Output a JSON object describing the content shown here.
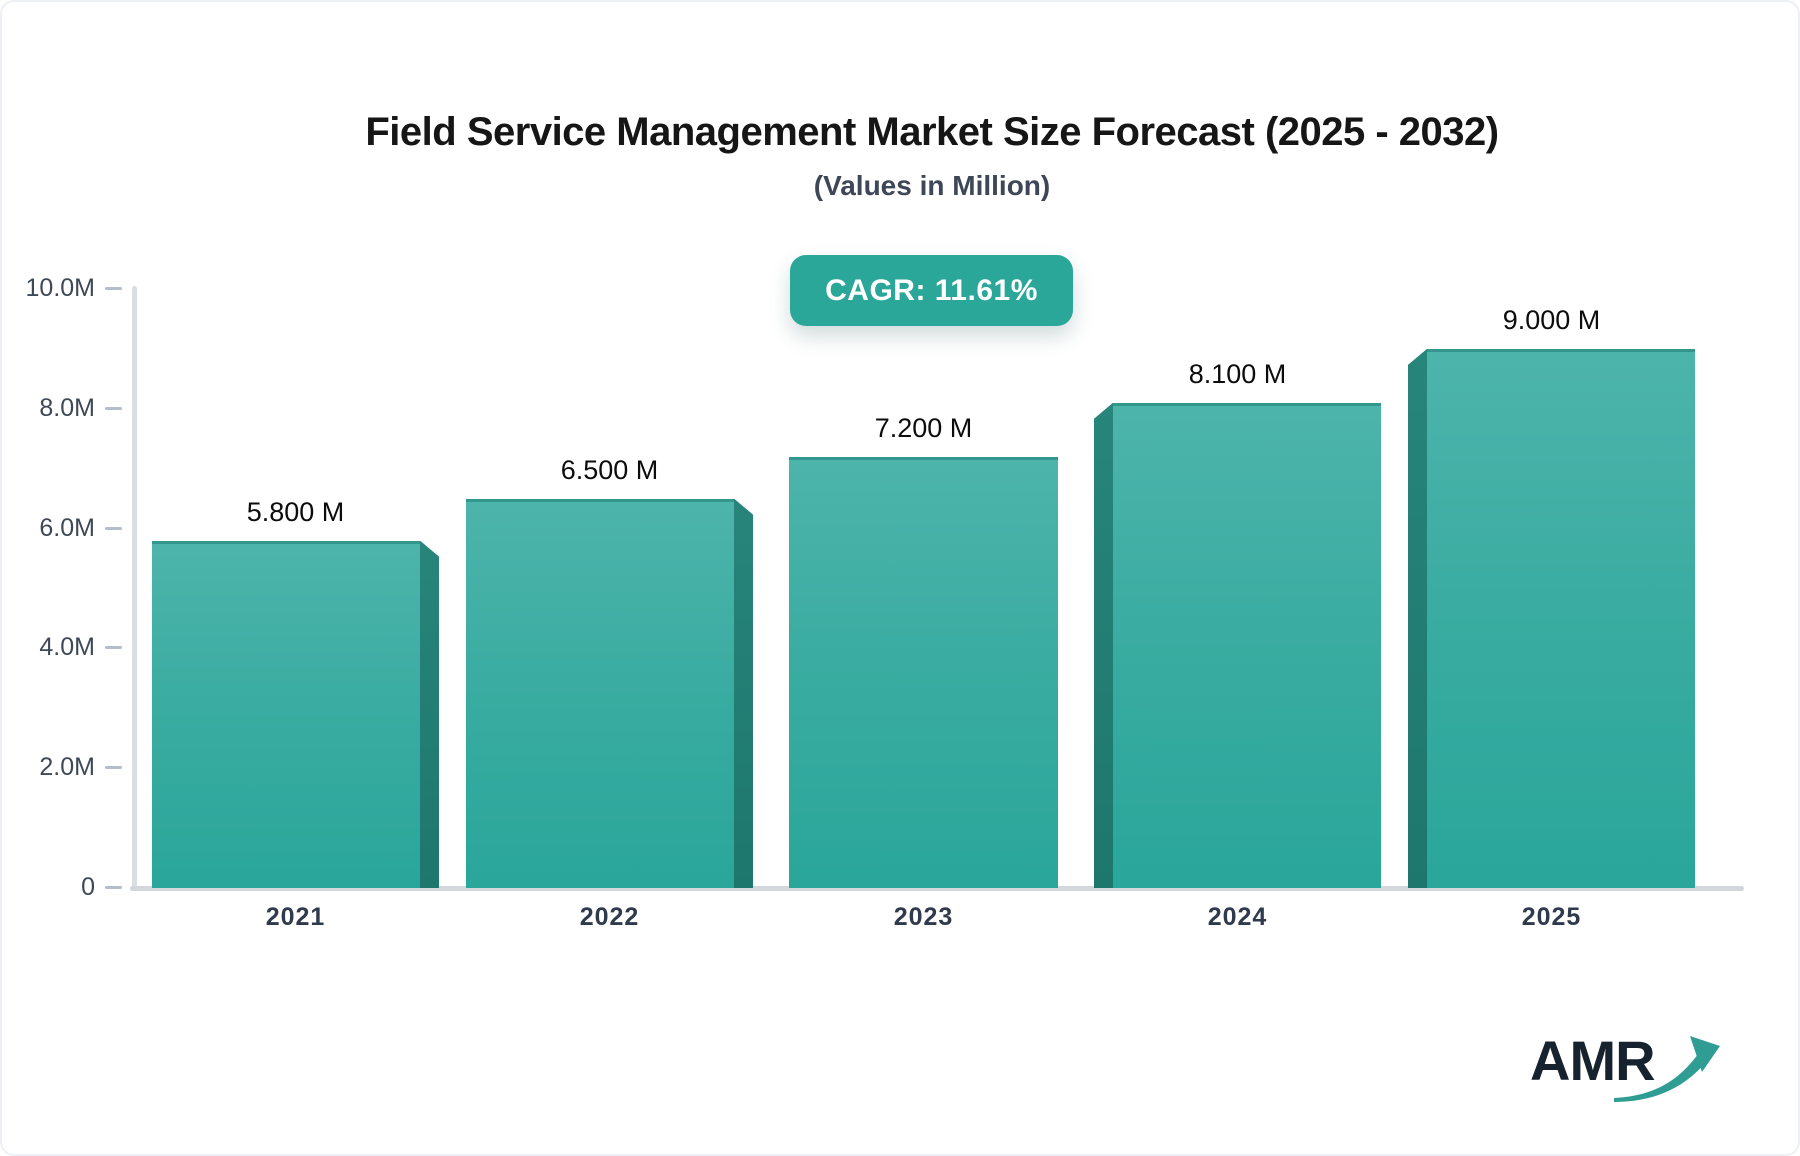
{
  "header": {
    "title": "Field Service Management Market Size Forecast (2025 - 2032)",
    "subtitle": "(Values in Million)"
  },
  "badge": {
    "label": "CAGR: 11.61%",
    "bg_color": "#2ba79a"
  },
  "chart_data": {
    "type": "bar",
    "title": "Field Service Management Market Size Forecast (2025 - 2032)",
    "subtitle": "(Values in Million)",
    "cagr_percent": 11.61,
    "categories": [
      "2021",
      "2022",
      "2023",
      "2024",
      "2025"
    ],
    "values": [
      5.8,
      6.5,
      7.2,
      8.1,
      9.0
    ],
    "value_labels": [
      "5.800 M",
      "6.500 M",
      "7.200 M",
      "8.100 M",
      "9.000 M"
    ],
    "unit": "Million",
    "ylim": [
      0,
      10
    ],
    "ytick_labels": [
      "0",
      "2.0M",
      "4.0M",
      "6.0M",
      "8.0M",
      "10.0M"
    ],
    "grid": false,
    "legend": false,
    "bar_color_top": "#4db4ab",
    "bar_color_bottom": "#2aa69a",
    "bar_side_color": "#1e776d"
  },
  "logo": {
    "text": "AMR",
    "arrow_color": "#2f9d93",
    "text_color": "#16222e"
  },
  "colors": {
    "accent_teal": "#2ba79a",
    "axis_gray": "#d3d7dc",
    "tick_gray": "#b7bdc6",
    "title_color": "#161616",
    "subtitle_color": "#3d4757",
    "year_label_color": "#2f3b4d"
  }
}
